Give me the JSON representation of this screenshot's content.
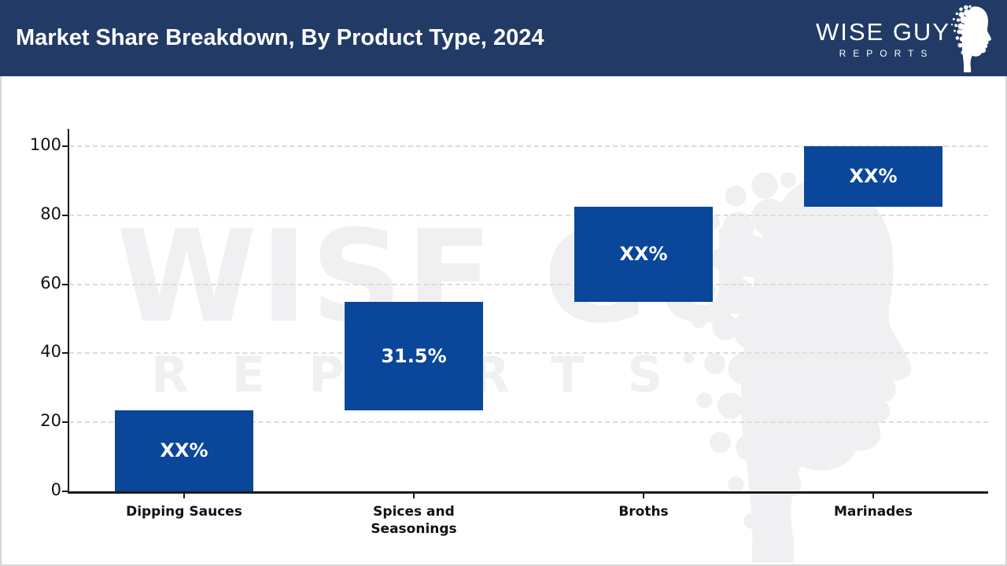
{
  "header": {
    "title": "Market Share Breakdown, By Product Type, 2024",
    "logo": {
      "line1": "WISE GUY",
      "line2": "REPORTS"
    }
  },
  "watermark": {
    "line1": "WISE GUY",
    "line2": "REPORTS"
  },
  "chart_data": {
    "type": "bar",
    "variant": "floating-waterfall",
    "title": "Market Share Breakdown, By Product Type, 2024",
    "categories": [
      [
        "Dipping Sauces"
      ],
      [
        "Spices and",
        "Seasonings"
      ],
      [
        "Broths"
      ],
      [
        "Marinades"
      ]
    ],
    "bars": [
      {
        "category": "Dipping Sauces",
        "start": 0,
        "end": 23.5,
        "share_pct": 23.5,
        "label": "XX%"
      },
      {
        "category": "Spices and Seasonings",
        "start": 23.5,
        "end": 55,
        "share_pct": 31.5,
        "label": "31.5%"
      },
      {
        "category": "Broths",
        "start": 55,
        "end": 82.5,
        "share_pct": 27.5,
        "label": "XX%"
      },
      {
        "category": "Marinades",
        "start": 82.5,
        "end": 100,
        "share_pct": 17.5,
        "label": "XX%"
      }
    ],
    "xlabel": "",
    "ylabel": "",
    "ylim": [
      0,
      105
    ],
    "yticks": [
      0,
      20,
      40,
      60,
      80,
      100
    ],
    "grid": "horizontal-dashed",
    "legend": false
  },
  "colors": {
    "header_bg": "#223A66",
    "bar": "#0A4699",
    "bar_label": "#ffffff",
    "title_text": "#ffffff",
    "watermark": "#f0f0f2",
    "gridline": "#dcdcdc",
    "axis": "#1a1a1a",
    "figure_border": "#d7d7d9"
  }
}
